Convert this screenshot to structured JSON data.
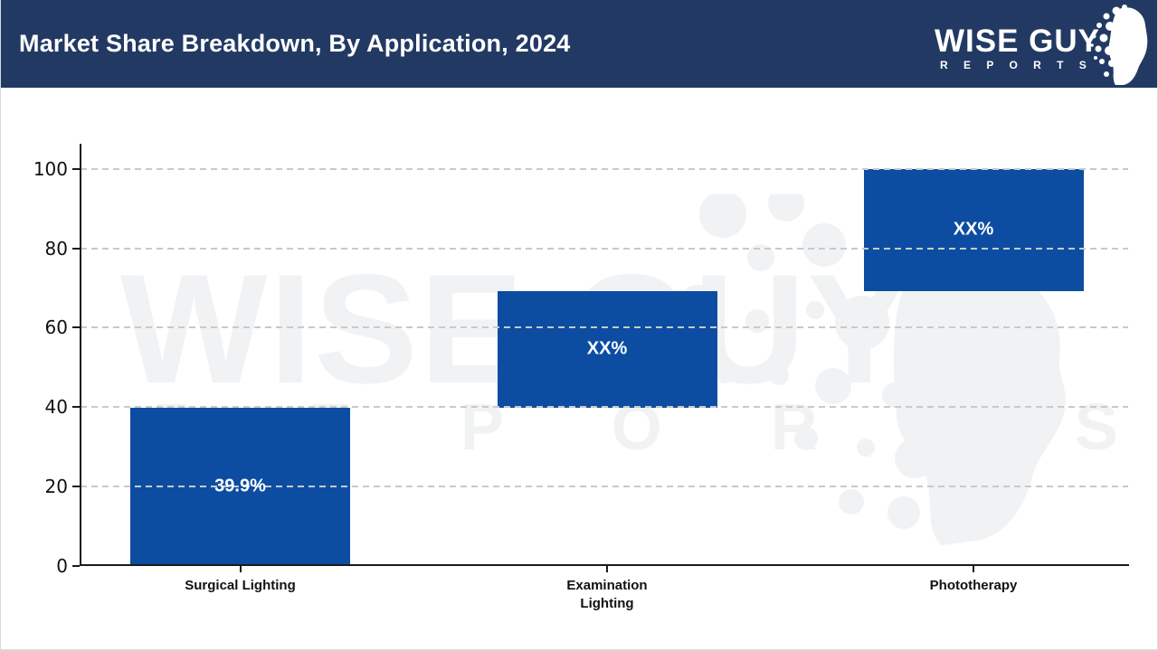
{
  "header": {
    "title": "Market Share Breakdown, By Application, 2024",
    "logo": {
      "name": "WISE GUY",
      "sub": "R E P O R T S"
    }
  },
  "watermark": {
    "line1": "WISE GUY",
    "line2": "R E P O R T S"
  },
  "colors": {
    "header_bg": "#223a63",
    "bar": "#0c4da2",
    "bar_label": "#ffffff",
    "gridline": "#c9c9c9",
    "axis": "#1a1a1a",
    "watermark": "#f1f2f4"
  },
  "chart_data": {
    "type": "bar",
    "subtype": "floating segmented percentage bars (market share adds to 100%)",
    "title": "Market Share Breakdown, By Application, 2024",
    "categories": [
      "Surgical Lighting",
      "Examination\nLighting",
      "Phototherapy"
    ],
    "series": [
      {
        "name": "Market Share",
        "segments": [
          {
            "category": "Surgical Lighting",
            "start": 0,
            "end": 39.9,
            "label": "39.9%"
          },
          {
            "category": "Examination Lighting",
            "start": 39.9,
            "end": 69.3,
            "label": "XX%"
          },
          {
            "category": "Phototherapy",
            "start": 69.3,
            "end": 100,
            "label": "XX%"
          }
        ]
      }
    ],
    "xlabel": "",
    "ylabel": "",
    "ylim": [
      0,
      105
    ],
    "yticks": [
      0,
      20,
      40,
      60,
      80,
      100
    ],
    "grid": "horizontal dashed",
    "legend": "none"
  }
}
